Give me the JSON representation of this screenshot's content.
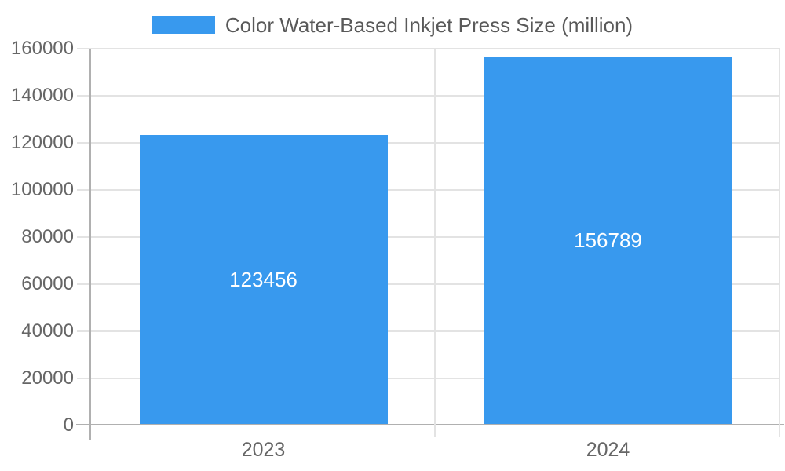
{
  "chart_data": {
    "type": "bar",
    "title": "Color Water-Based Inkjet Press Size (million)",
    "categories": [
      "2023",
      "2024"
    ],
    "series": [
      {
        "name": "Color Water-Based Inkjet Press Size (million)",
        "values": [
          123456,
          156789
        ]
      }
    ],
    "data_labels": [
      "123456",
      "156789"
    ],
    "xlabel": "",
    "ylabel": "",
    "ylim": [
      0,
      160000
    ],
    "y_tick_step": 20000,
    "y_ticks": [
      "0",
      "20000",
      "40000",
      "60000",
      "80000",
      "100000",
      "120000",
      "140000",
      "160000"
    ],
    "grid": true,
    "legend_position": "top",
    "data_label_position": "center",
    "colors": {
      "bar": "#3899ee",
      "grid": "#e3e3e3",
      "axis": "#b0b0b0",
      "tick_text": "#666666",
      "legend_text": "#595959",
      "data_label": "#ffffff"
    }
  }
}
